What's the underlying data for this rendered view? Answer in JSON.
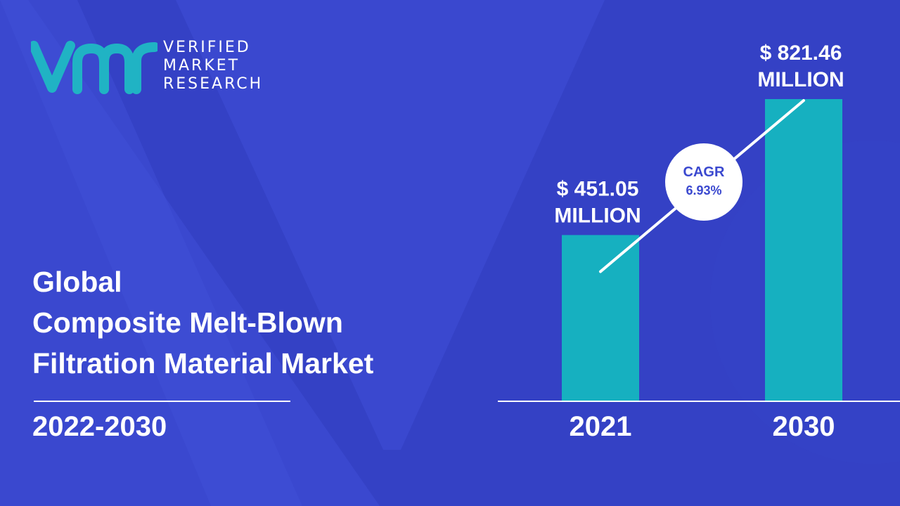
{
  "brand": {
    "logo_initials": "vmr",
    "line1": "VERIFIED",
    "line2": "MARKET",
    "line3": "RESEARCH"
  },
  "title": {
    "line1": "Global",
    "line2": "Composite Melt-Blown",
    "line3": "Filtration Material Market"
  },
  "period": "2022-2030",
  "colors": {
    "background": "#3a48cf",
    "background_shape": "#2c39b8",
    "bar": "#16b0c0",
    "logo": "#20b3c4",
    "text": "#ffffff",
    "cagr_text": "#3a48cf"
  },
  "chart_data": {
    "type": "bar",
    "categories": [
      "2021",
      "2030"
    ],
    "values": [
      451.05,
      821.46
    ],
    "value_labels": [
      [
        "$ 451.05",
        "MILLION"
      ],
      [
        "$ 821.46",
        "MILLION"
      ]
    ],
    "ylim": [
      0,
      900
    ],
    "title": "",
    "xlabel": "",
    "ylabel": "",
    "grid": false,
    "annotation": {
      "line1": "CAGR",
      "line2": "6.93%"
    }
  }
}
